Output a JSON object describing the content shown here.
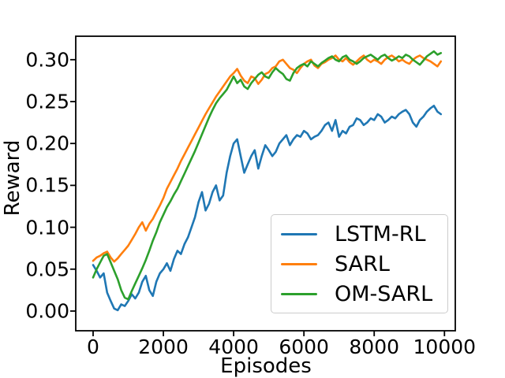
{
  "chart_data": {
    "type": "line",
    "title": "",
    "xlabel": "Episodes",
    "ylabel": "Reward",
    "grid": false,
    "legend_position": "lower right inside axes",
    "axis_color": "#000000",
    "xlim": [
      -494,
      10308
    ],
    "ylim": [
      -0.0235,
      0.328
    ],
    "x_step": 100,
    "xticks": {
      "values": [
        0,
        2000,
        4000,
        6000,
        8000,
        10000
      ],
      "labels": [
        "0",
        "2000",
        "4000",
        "6000",
        "8000",
        "10000"
      ]
    },
    "yticks": {
      "values": [
        0.0,
        0.05,
        0.1,
        0.15,
        0.2,
        0.25,
        0.3
      ],
      "labels": [
        "0.00",
        "0.05",
        "0.10",
        "0.15",
        "0.20",
        "0.25",
        "0.30"
      ]
    },
    "series": [
      {
        "name": "LSTM-RL",
        "color": "#1f77b4",
        "values": [
          0.055,
          0.048,
          0.04,
          0.045,
          0.022,
          0.012,
          0.003,
          0.001,
          0.008,
          0.006,
          0.012,
          0.02,
          0.015,
          0.022,
          0.035,
          0.042,
          0.025,
          0.018,
          0.035,
          0.045,
          0.05,
          0.057,
          0.048,
          0.062,
          0.072,
          0.068,
          0.08,
          0.088,
          0.1,
          0.112,
          0.13,
          0.142,
          0.12,
          0.128,
          0.142,
          0.15,
          0.132,
          0.138,
          0.165,
          0.185,
          0.2,
          0.205,
          0.185,
          0.165,
          0.175,
          0.185,
          0.192,
          0.17,
          0.185,
          0.198,
          0.192,
          0.185,
          0.19,
          0.2,
          0.205,
          0.21,
          0.198,
          0.205,
          0.21,
          0.208,
          0.215,
          0.212,
          0.205,
          0.208,
          0.21,
          0.215,
          0.222,
          0.225,
          0.215,
          0.228,
          0.208,
          0.215,
          0.212,
          0.22,
          0.222,
          0.23,
          0.228,
          0.222,
          0.225,
          0.23,
          0.228,
          0.235,
          0.232,
          0.225,
          0.228,
          0.232,
          0.23,
          0.235,
          0.238,
          0.24,
          0.235,
          0.225,
          0.22,
          0.228,
          0.232,
          0.238,
          0.242,
          0.245,
          0.238,
          0.235
        ]
      },
      {
        "name": "SARL",
        "color": "#ff7f0e",
        "values": [
          0.06,
          0.064,
          0.066,
          0.069,
          0.071,
          0.064,
          0.059,
          0.063,
          0.068,
          0.073,
          0.078,
          0.085,
          0.092,
          0.1,
          0.106,
          0.096,
          0.104,
          0.11,
          0.118,
          0.126,
          0.135,
          0.146,
          0.154,
          0.162,
          0.17,
          0.179,
          0.187,
          0.195,
          0.203,
          0.211,
          0.219,
          0.227,
          0.235,
          0.242,
          0.249,
          0.256,
          0.262,
          0.268,
          0.274,
          0.28,
          0.284,
          0.289,
          0.281,
          0.275,
          0.272,
          0.28,
          0.278,
          0.271,
          0.276,
          0.283,
          0.285,
          0.29,
          0.292,
          0.298,
          0.3,
          0.295,
          0.29,
          0.288,
          0.284,
          0.29,
          0.295,
          0.298,
          0.3,
          0.293,
          0.29,
          0.295,
          0.297,
          0.3,
          0.302,
          0.305,
          0.3,
          0.298,
          0.302,
          0.297,
          0.294,
          0.298,
          0.302,
          0.305,
          0.3,
          0.297,
          0.3,
          0.298,
          0.295,
          0.3,
          0.303,
          0.305,
          0.302,
          0.298,
          0.3,
          0.297,
          0.295,
          0.3,
          0.303,
          0.305,
          0.302,
          0.3,
          0.298,
          0.295,
          0.292,
          0.298
        ]
      },
      {
        "name": "OM-SARL",
        "color": "#2ca02c",
        "values": [
          0.04,
          0.05,
          0.058,
          0.066,
          0.068,
          0.058,
          0.048,
          0.038,
          0.025,
          0.016,
          0.014,
          0.024,
          0.033,
          0.042,
          0.051,
          0.061,
          0.072,
          0.084,
          0.094,
          0.106,
          0.115,
          0.124,
          0.131,
          0.139,
          0.146,
          0.155,
          0.164,
          0.173,
          0.182,
          0.191,
          0.201,
          0.211,
          0.221,
          0.231,
          0.24,
          0.248,
          0.254,
          0.259,
          0.264,
          0.272,
          0.28,
          0.272,
          0.276,
          0.268,
          0.265,
          0.272,
          0.277,
          0.282,
          0.285,
          0.28,
          0.278,
          0.285,
          0.29,
          0.286,
          0.283,
          0.277,
          0.275,
          0.284,
          0.29,
          0.293,
          0.295,
          0.292,
          0.298,
          0.295,
          0.292,
          0.296,
          0.299,
          0.302,
          0.304,
          0.3,
          0.298,
          0.303,
          0.305,
          0.3,
          0.298,
          0.295,
          0.298,
          0.302,
          0.304,
          0.306,
          0.303,
          0.3,
          0.304,
          0.306,
          0.302,
          0.299,
          0.301,
          0.304,
          0.302,
          0.306,
          0.304,
          0.3,
          0.297,
          0.294,
          0.299,
          0.304,
          0.307,
          0.31,
          0.306,
          0.308
        ]
      }
    ]
  }
}
